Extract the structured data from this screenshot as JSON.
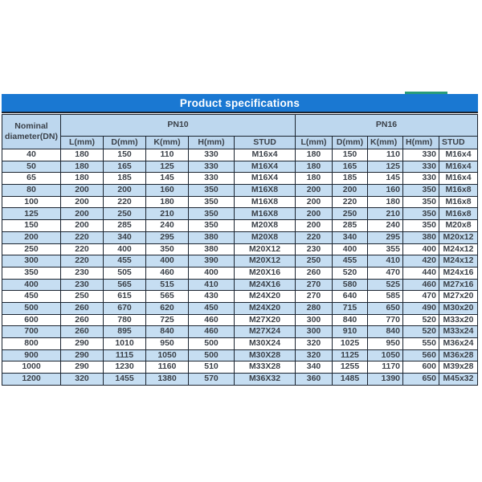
{
  "title": "Product specifications",
  "colors": {
    "title_bar": "#1a78d2",
    "header_fill": "#bdd7ee",
    "alt_row_fill": "#c6def2",
    "border": "#1b2430",
    "green_accent": "#2a9d78",
    "title_text": "#ffffff",
    "cell_text": "#3b4149"
  },
  "table": {
    "group_headers": {
      "nominal": "Nominal diameter(DN)",
      "pn10": "PN10",
      "pn16": "PN16"
    },
    "sub_headers": [
      "L(mm)",
      "D(mm)",
      "K(mm)",
      "H(mm)",
      "STUD"
    ],
    "rows": [
      {
        "dn": "40",
        "pn10": [
          "180",
          "150",
          "110",
          "330",
          "M16x4"
        ],
        "pn16": [
          "180",
          "150",
          "110",
          "330",
          "M16x4"
        ]
      },
      {
        "dn": "50",
        "pn10": [
          "180",
          "165",
          "125",
          "330",
          "M16X4"
        ],
        "pn16": [
          "180",
          "165",
          "125",
          "330",
          "M16x4"
        ]
      },
      {
        "dn": "65",
        "pn10": [
          "180",
          "185",
          "145",
          "330",
          "M16X4"
        ],
        "pn16": [
          "180",
          "185",
          "145",
          "330",
          "M16x4"
        ]
      },
      {
        "dn": "80",
        "pn10": [
          "200",
          "200",
          "160",
          "350",
          "M16X8"
        ],
        "pn16": [
          "200",
          "200",
          "160",
          "350",
          "M16x8"
        ]
      },
      {
        "dn": "100",
        "pn10": [
          "200",
          "220",
          "180",
          "350",
          "M16X8"
        ],
        "pn16": [
          "200",
          "220",
          "180",
          "350",
          "M16x8"
        ]
      },
      {
        "dn": "125",
        "pn10": [
          "200",
          "250",
          "210",
          "350",
          "M16X8"
        ],
        "pn16": [
          "200",
          "250",
          "210",
          "350",
          "M16x8"
        ]
      },
      {
        "dn": "150",
        "pn10": [
          "200",
          "285",
          "240",
          "350",
          "M20X8"
        ],
        "pn16": [
          "200",
          "285",
          "240",
          "350",
          "M20x8"
        ]
      },
      {
        "dn": "200",
        "pn10": [
          "220",
          "340",
          "295",
          "380",
          "M20X8"
        ],
        "pn16": [
          "220",
          "340",
          "295",
          "380",
          "M20x12"
        ]
      },
      {
        "dn": "250",
        "pn10": [
          "220",
          "400",
          "350",
          "380",
          "M20X12"
        ],
        "pn16": [
          "230",
          "400",
          "355",
          "400",
          "M24x12"
        ]
      },
      {
        "dn": "300",
        "pn10": [
          "220",
          "455",
          "400",
          "390",
          "M20X12"
        ],
        "pn16": [
          "250",
          "455",
          "410",
          "420",
          "M24x12"
        ]
      },
      {
        "dn": "350",
        "pn10": [
          "230",
          "505",
          "460",
          "400",
          "M20X16"
        ],
        "pn16": [
          "260",
          "520",
          "470",
          "440",
          "M24x16"
        ]
      },
      {
        "dn": "400",
        "pn10": [
          "230",
          "565",
          "515",
          "410",
          "M24X16"
        ],
        "pn16": [
          "270",
          "580",
          "525",
          "460",
          "M27x16"
        ]
      },
      {
        "dn": "450",
        "pn10": [
          "250",
          "615",
          "565",
          "430",
          "M24X20"
        ],
        "pn16": [
          "270",
          "640",
          "585",
          "470",
          "M27x20"
        ]
      },
      {
        "dn": "500",
        "pn10": [
          "260",
          "670",
          "620",
          "450",
          "M24X20"
        ],
        "pn16": [
          "280",
          "715",
          "650",
          "490",
          "M30x20"
        ]
      },
      {
        "dn": "600",
        "pn10": [
          "260",
          "780",
          "725",
          "460",
          "M27X20"
        ],
        "pn16": [
          "300",
          "840",
          "770",
          "520",
          "M33x20"
        ]
      },
      {
        "dn": "700",
        "pn10": [
          "260",
          "895",
          "840",
          "460",
          "M27X24"
        ],
        "pn16": [
          "300",
          "910",
          "840",
          "520",
          "M33x24"
        ]
      },
      {
        "dn": "800",
        "pn10": [
          "290",
          "1010",
          "950",
          "500",
          "M30X24"
        ],
        "pn16": [
          "320",
          "1025",
          "950",
          "550",
          "M36x24"
        ]
      },
      {
        "dn": "900",
        "pn10": [
          "290",
          "1115",
          "1050",
          "500",
          "M30X28"
        ],
        "pn16": [
          "320",
          "1125",
          "1050",
          "560",
          "M36x28"
        ]
      },
      {
        "dn": "1000",
        "pn10": [
          "290",
          "1230",
          "1160",
          "510",
          "M33X28"
        ],
        "pn16": [
          "340",
          "1255",
          "1170",
          "600",
          "M39x28"
        ]
      },
      {
        "dn": "1200",
        "pn10": [
          "320",
          "1455",
          "1380",
          "570",
          "M36X32"
        ],
        "pn16": [
          "360",
          "1485",
          "1390",
          "650",
          "M45x32"
        ]
      }
    ]
  }
}
